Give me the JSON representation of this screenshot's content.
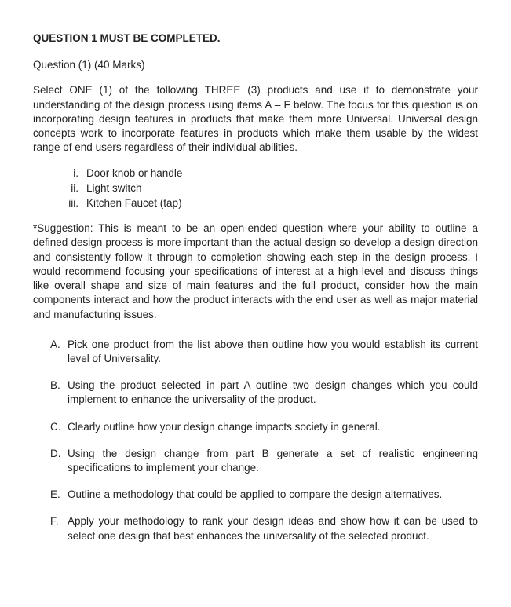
{
  "heading": "QUESTION 1 MUST BE COMPLETED.",
  "question_line": "Question (1) (40 Marks)",
  "intro_para": "Select ONE (1) of the following THREE (3) products and use it to demonstrate your understanding of the design process using items A – F below.  The focus for this question is on incorporating design features in products that make them more Universal.  Universal design concepts work to incorporate features in products which make them usable by the widest range of end users regardless of their individual abilities.",
  "roman_items": [
    {
      "marker": "i.",
      "text": "Door knob or handle"
    },
    {
      "marker": "ii.",
      "text": "Light switch"
    },
    {
      "marker": "iii.",
      "text": "Kitchen Faucet (tap)"
    }
  ],
  "suggestion_para": "*Suggestion: This is meant to be an open-ended question where your ability to outline a defined design process is more important than the actual design so develop a design direction and consistently follow it through to completion showing each step in the design process.  I would recommend focusing your specifications of interest at a high-level and discuss things like overall shape and size of main features and the full product, consider how the main components interact and how the product interacts with the end user as well as major material and manufacturing issues.",
  "alpha_items": [
    {
      "marker": "A.",
      "text": "Pick one product from the list above then outline how you would establish its current level of Universality."
    },
    {
      "marker": "B.",
      "text": "Using the product selected in part A outline two design changes which you could implement to enhance the universality of the product."
    },
    {
      "marker": "C.",
      "text": "Clearly outline how your design change impacts society in general."
    },
    {
      "marker": "D.",
      "text": "Using the design change from part B generate a set of realistic engineering specifications to implement your change."
    },
    {
      "marker": "E.",
      "text": "Outline a methodology that could be applied to compare the design alternatives."
    },
    {
      "marker": "F.",
      "text": "Apply your methodology to rank your design ideas and show how it can be used to select one design that best enhances the universality of the selected product."
    }
  ]
}
